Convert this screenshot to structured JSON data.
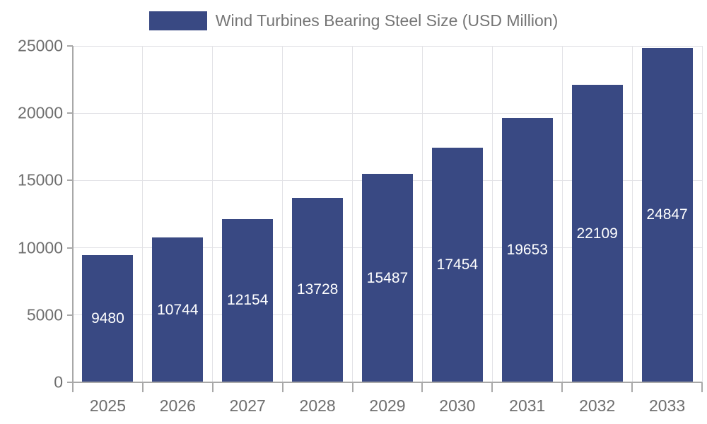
{
  "legend": {
    "items": [
      {
        "label": "Wind Turbines Bearing Steel Size (USD Million)",
        "color": "#394983"
      }
    ]
  },
  "chart_data": {
    "type": "bar",
    "title": "Wind Turbines Bearing Steel Size (USD Million)",
    "categories": [
      "2025",
      "2026",
      "2027",
      "2028",
      "2029",
      "2030",
      "2031",
      "2032",
      "2033"
    ],
    "values": [
      9480,
      10744,
      12154,
      13728,
      15487,
      17454,
      19653,
      22109,
      24847
    ],
    "xlabel": "",
    "ylabel": "",
    "ylim": [
      0,
      25000
    ],
    "yticks": [
      0,
      5000,
      10000,
      15000,
      20000,
      25000
    ],
    "grid": true,
    "legend_position": "top",
    "bar_color": "#394983",
    "value_label_color": "#ffffff",
    "axis_text_color": "#6e6e6e",
    "gridline_color": "#e2e2e6",
    "axis_line_color": "#a8a8a8"
  }
}
